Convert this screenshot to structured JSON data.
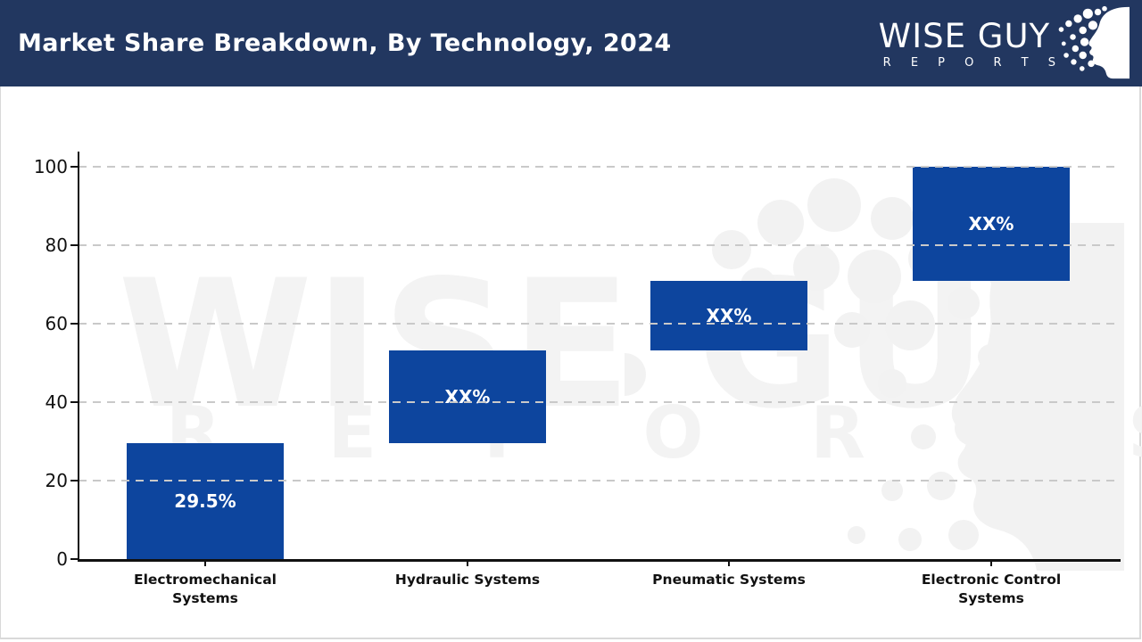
{
  "header": {
    "title": "Market Share Breakdown, By Technology, 2024",
    "bg_color": "#223760",
    "logo": {
      "line1": "WISE GUY",
      "line2": "R E P O R T S"
    }
  },
  "watermark": {
    "line1": "WISE GUY",
    "line2": "R E P O R T S",
    "color": "#f3f3f3"
  },
  "chart_data": {
    "type": "bar",
    "subtype": "waterfall",
    "title": "Market Share Breakdown, By Technology, 2024",
    "xlabel": "",
    "ylabel": "",
    "categories": [
      {
        "name": "Electromechanical Systems",
        "lines": [
          "Electromechanical",
          "Systems"
        ]
      },
      {
        "name": "Hydraulic Systems",
        "lines": [
          "Hydraulic Systems"
        ]
      },
      {
        "name": "Pneumatic Systems",
        "lines": [
          "Pneumatic Systems"
        ]
      },
      {
        "name": "Electronic Control Systems",
        "lines": [
          "Electronic Control",
          "Systems"
        ]
      }
    ],
    "segments": [
      {
        "category": "Electromechanical Systems",
        "base": 0,
        "top": 29.5,
        "size": 29.5,
        "label": "29.5%"
      },
      {
        "category": "Hydraulic Systems",
        "base": 29.5,
        "top": 53.2,
        "size": 23.7,
        "label": "XX%"
      },
      {
        "category": "Pneumatic Systems",
        "base": 53.2,
        "top": 70.9,
        "size": 17.7,
        "label": "XX%"
      },
      {
        "category": "Electronic Control Systems",
        "base": 70.9,
        "top": 100,
        "size": 29.1,
        "label": "XX%"
      }
    ],
    "yticks": [
      0,
      20,
      40,
      60,
      80,
      100
    ],
    "ytick_labels": [
      "0",
      "20",
      "40",
      "60",
      "80",
      "100"
    ],
    "ylim": [
      0,
      104
    ],
    "grid": true,
    "gridlines_over_bars": true,
    "legend": "none",
    "bar_color": "#0d459e",
    "bar_label_color": "#ffffff",
    "gridline_color": "#c9c9c9",
    "axis_color": "#111111"
  }
}
